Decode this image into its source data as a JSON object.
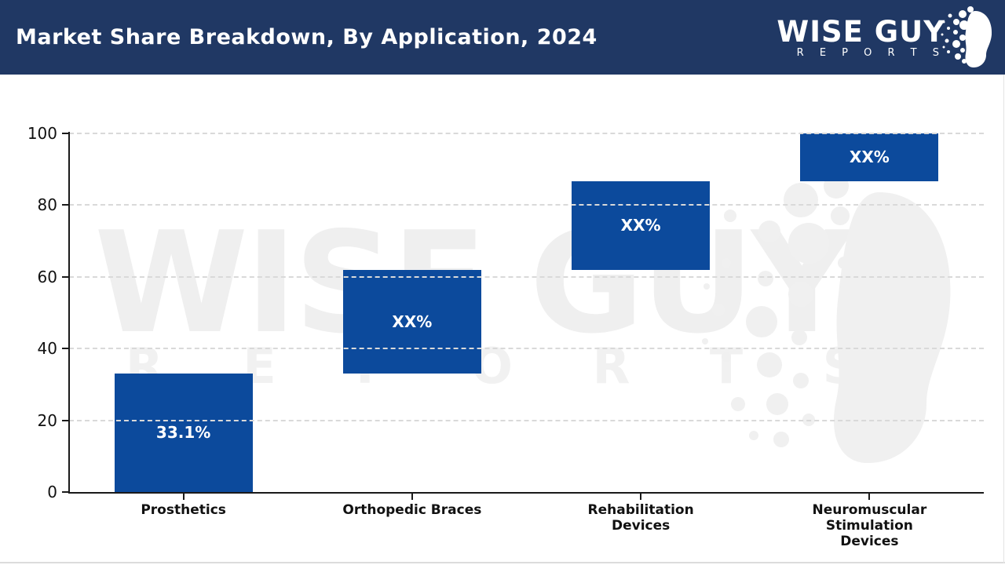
{
  "header": {
    "title": "Market Share Breakdown, By Application, 2024",
    "bg_color": "#203864",
    "logo": {
      "line1": "WISE GUY",
      "line2": "R E P O R T S"
    }
  },
  "watermark": {
    "line1": "WISE GUY.",
    "line2": "R E P O R T S"
  },
  "chart_data": {
    "type": "bar",
    "subtype": "waterfall",
    "title": "Market Share Breakdown, By Application, 2024",
    "categories": [
      "Prosthetics",
      "Orthopedic Braces",
      "Rehabilitation\nDevices",
      "Neuromuscular\nStimulation\nDevices"
    ],
    "series": [
      {
        "name": "Market Share %",
        "segments": [
          {
            "category": "Prosthetics",
            "start": 0,
            "end": 33.1,
            "label": "33.1%"
          },
          {
            "category": "Orthopedic Braces",
            "start": 33.1,
            "end": 62,
            "label": "XX%"
          },
          {
            "category": "Rehabilitation Devices",
            "start": 62,
            "end": 86.7,
            "label": "XX%"
          },
          {
            "category": "Neuromuscular Stimulation Devices",
            "start": 86.7,
            "end": 100,
            "label": "XX%"
          }
        ]
      }
    ],
    "xlabel": "",
    "ylabel": "",
    "ylim": [
      0,
      100
    ],
    "yticks": [
      0,
      20,
      40,
      60,
      80,
      100
    ],
    "grid": "horizontal-dashed",
    "legend": "none",
    "bar_color": "#0c4a9c",
    "bar_label_color": "#ffffff",
    "grid_color": "#d9d9d9",
    "axis_color": "#1a1a1a"
  }
}
